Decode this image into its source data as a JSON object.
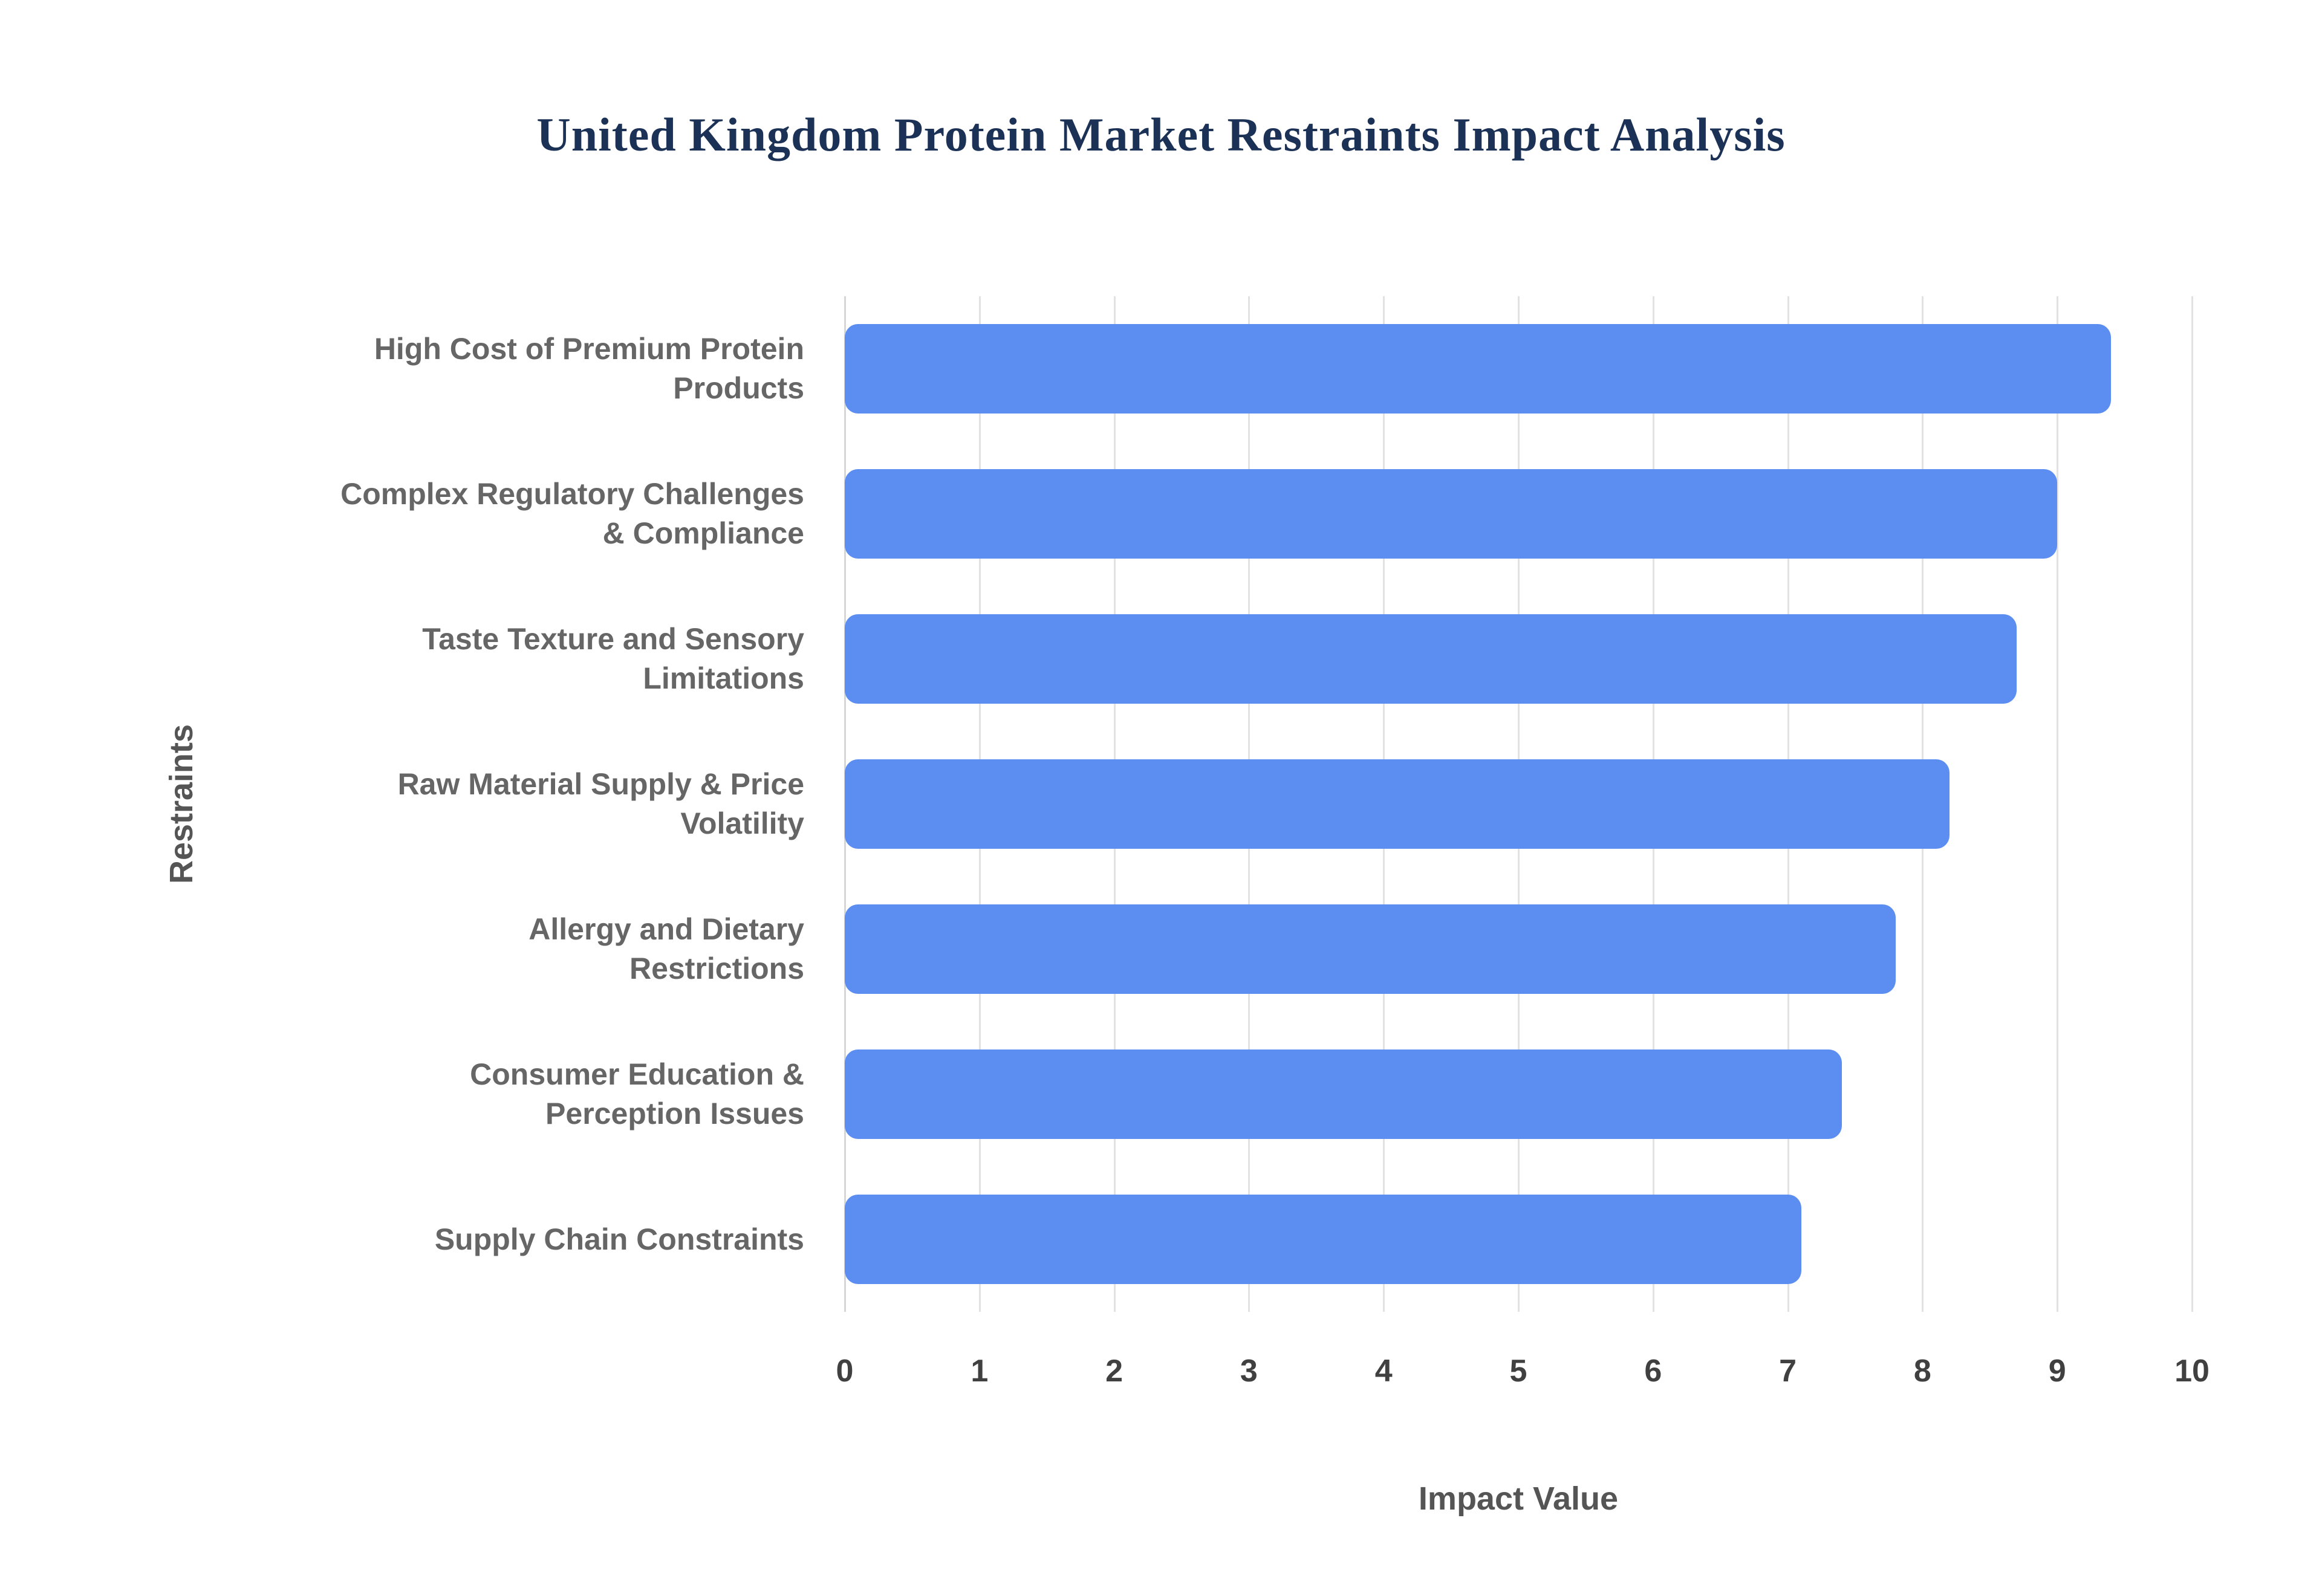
{
  "page": {
    "background": "#ffffff"
  },
  "chart_data": {
    "type": "bar",
    "orientation": "horizontal",
    "title": "United Kingdom Protein Market Restraints Impact Analysis",
    "xlabel": "Impact Value",
    "ylabel": "Restraints",
    "xlim": [
      0,
      10
    ],
    "x_ticks": [
      0,
      1,
      2,
      3,
      4,
      5,
      6,
      7,
      8,
      9,
      10
    ],
    "categories": [
      "High Cost of Premium Protein Products",
      "Complex Regulatory Challenges & Compliance",
      "Taste Texture and Sensory Limitations",
      "Raw Material Supply & Price Volatility",
      "Allergy and Dietary Restrictions",
      "Consumer Education & Perception Issues",
      "Supply Chain Constraints"
    ],
    "category_lines": [
      [
        "High Cost of Premium Protein",
        "Products"
      ],
      [
        "Complex Regulatory Challenges",
        "& Compliance"
      ],
      [
        "Taste Texture and Sensory",
        "Limitations"
      ],
      [
        "Raw Material Supply & Price",
        "Volatility"
      ],
      [
        "Allergy and Dietary",
        "Restrictions"
      ],
      [
        "Consumer Education &",
        "Perception Issues"
      ],
      [
        "Supply Chain Constraints"
      ]
    ],
    "values": [
      9.4,
      9.0,
      8.7,
      8.2,
      7.8,
      7.4,
      7.1
    ],
    "bar_color": "#5b8ef0",
    "grid": true,
    "gridline_color": "#e2e2e2",
    "legend": "none",
    "title_color": "#1b3156",
    "label_color": "#666666",
    "tick_color": "#404040",
    "axis_title_color": "#555555"
  }
}
